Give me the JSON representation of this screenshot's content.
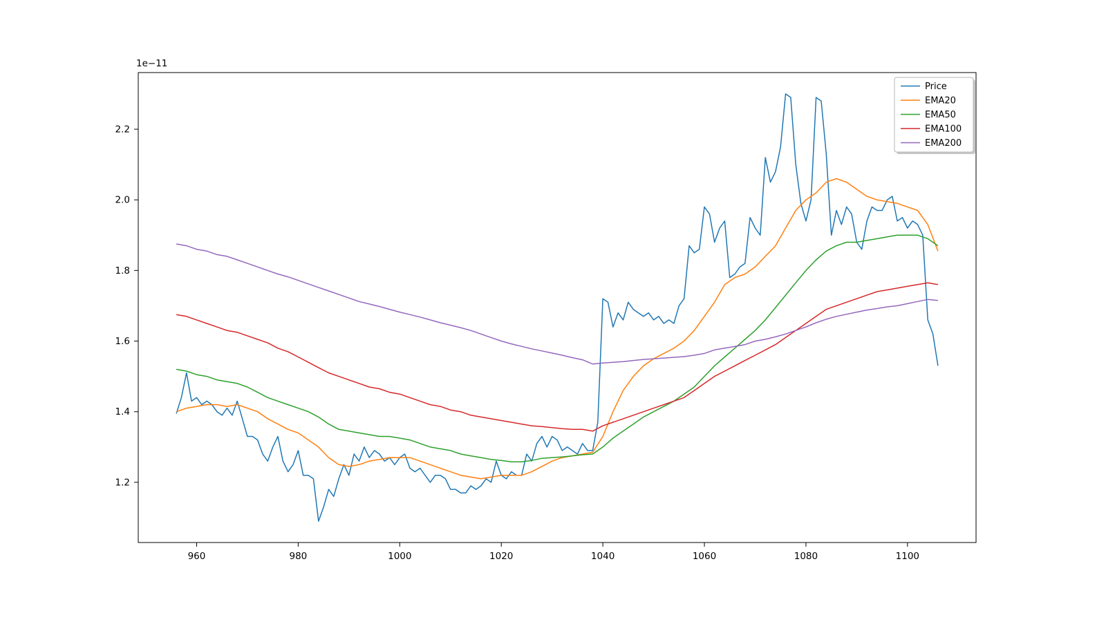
{
  "figure": {
    "background": "#ffffff",
    "axes_edge_color": "#000000",
    "legend_border_color": "#b4b4b4",
    "legend_background": "#ffffff"
  },
  "chart_data": {
    "type": "line",
    "title": "",
    "xlabel": "",
    "ylabel": "",
    "offset_text": "1e−11",
    "grid": false,
    "legend_position": "upper right",
    "xlim": [
      948.5,
      1113.5
    ],
    "ylim": [
      1.0295,
      2.3605
    ],
    "xticks": [
      960,
      980,
      1000,
      1020,
      1040,
      1060,
      1080,
      1100
    ],
    "yticks": [
      1.2,
      1.4,
      1.6,
      1.8,
      2.0,
      2.2
    ],
    "series": [
      {
        "name": "Price",
        "color": "#1f77b4",
        "x_start": 956,
        "x_step": 1,
        "values": [
          1.395,
          1.44,
          1.51,
          1.43,
          1.44,
          1.42,
          1.43,
          1.42,
          1.4,
          1.39,
          1.41,
          1.39,
          1.43,
          1.38,
          1.33,
          1.33,
          1.32,
          1.28,
          1.26,
          1.3,
          1.33,
          1.26,
          1.23,
          1.25,
          1.29,
          1.22,
          1.22,
          1.21,
          1.09,
          1.13,
          1.18,
          1.16,
          1.21,
          1.25,
          1.22,
          1.28,
          1.26,
          1.3,
          1.27,
          1.29,
          1.28,
          1.26,
          1.27,
          1.25,
          1.27,
          1.28,
          1.24,
          1.23,
          1.24,
          1.22,
          1.2,
          1.22,
          1.22,
          1.21,
          1.18,
          1.18,
          1.17,
          1.17,
          1.19,
          1.18,
          1.19,
          1.21,
          1.2,
          1.26,
          1.22,
          1.21,
          1.23,
          1.22,
          1.22,
          1.28,
          1.26,
          1.31,
          1.33,
          1.3,
          1.33,
          1.32,
          1.29,
          1.3,
          1.29,
          1.28,
          1.31,
          1.29,
          1.29,
          1.37,
          1.72,
          1.71,
          1.64,
          1.68,
          1.66,
          1.71,
          1.69,
          1.68,
          1.67,
          1.68,
          1.66,
          1.67,
          1.65,
          1.66,
          1.65,
          1.7,
          1.72,
          1.87,
          1.85,
          1.86,
          1.98,
          1.96,
          1.88,
          1.92,
          1.94,
          1.78,
          1.79,
          1.81,
          1.82,
          1.95,
          1.92,
          1.9,
          2.12,
          2.05,
          2.08,
          2.15,
          2.3,
          2.29,
          2.1,
          1.99,
          1.94,
          2.0,
          2.29,
          2.28,
          2.13,
          1.9,
          1.97,
          1.93,
          1.98,
          1.96,
          1.88,
          1.86,
          1.94,
          1.98,
          1.97,
          1.97,
          2.0,
          2.01,
          1.94,
          1.95,
          1.92,
          1.94,
          1.93,
          1.9,
          1.66,
          1.62,
          1.53
        ]
      },
      {
        "name": "EMA20",
        "color": "#ff7f0e",
        "x_start": 956,
        "x_step": 2,
        "values": [
          1.4,
          1.41,
          1.415,
          1.42,
          1.42,
          1.415,
          1.42,
          1.41,
          1.4,
          1.38,
          1.365,
          1.35,
          1.34,
          1.32,
          1.3,
          1.27,
          1.25,
          1.245,
          1.25,
          1.26,
          1.265,
          1.27,
          1.27,
          1.27,
          1.26,
          1.25,
          1.24,
          1.23,
          1.22,
          1.215,
          1.21,
          1.215,
          1.22,
          1.22,
          1.22,
          1.23,
          1.245,
          1.26,
          1.27,
          1.275,
          1.28,
          1.285,
          1.33,
          1.4,
          1.46,
          1.5,
          1.53,
          1.55,
          1.565,
          1.58,
          1.6,
          1.63,
          1.67,
          1.71,
          1.76,
          1.78,
          1.79,
          1.81,
          1.84,
          1.87,
          1.92,
          1.97,
          2.0,
          2.02,
          2.05,
          2.06,
          2.05,
          2.03,
          2.01,
          2.0,
          1.995,
          1.99,
          1.98,
          1.97,
          1.93,
          1.855
        ]
      },
      {
        "name": "EMA50",
        "color": "#2ca02c",
        "x_start": 956,
        "x_step": 2,
        "values": [
          1.52,
          1.515,
          1.505,
          1.5,
          1.49,
          1.485,
          1.48,
          1.47,
          1.455,
          1.44,
          1.43,
          1.42,
          1.41,
          1.4,
          1.385,
          1.365,
          1.35,
          1.345,
          1.34,
          1.335,
          1.33,
          1.33,
          1.325,
          1.32,
          1.31,
          1.3,
          1.295,
          1.29,
          1.28,
          1.275,
          1.27,
          1.265,
          1.262,
          1.258,
          1.258,
          1.262,
          1.268,
          1.27,
          1.272,
          1.275,
          1.278,
          1.28,
          1.3,
          1.325,
          1.345,
          1.365,
          1.385,
          1.4,
          1.415,
          1.43,
          1.45,
          1.47,
          1.5,
          1.53,
          1.555,
          1.58,
          1.605,
          1.63,
          1.66,
          1.695,
          1.73,
          1.765,
          1.8,
          1.83,
          1.855,
          1.87,
          1.88,
          1.88,
          1.885,
          1.89,
          1.895,
          1.9,
          1.9,
          1.9,
          1.89,
          1.87
        ]
      },
      {
        "name": "EMA100",
        "color": "#d62728",
        "x_start": 956,
        "x_step": 2,
        "values": [
          1.675,
          1.67,
          1.66,
          1.65,
          1.64,
          1.63,
          1.625,
          1.615,
          1.605,
          1.595,
          1.58,
          1.57,
          1.555,
          1.54,
          1.525,
          1.51,
          1.5,
          1.49,
          1.48,
          1.47,
          1.465,
          1.455,
          1.45,
          1.44,
          1.43,
          1.42,
          1.415,
          1.405,
          1.4,
          1.39,
          1.385,
          1.38,
          1.375,
          1.37,
          1.365,
          1.36,
          1.358,
          1.355,
          1.352,
          1.35,
          1.35,
          1.345,
          1.36,
          1.37,
          1.38,
          1.39,
          1.4,
          1.41,
          1.42,
          1.43,
          1.44,
          1.46,
          1.48,
          1.5,
          1.515,
          1.53,
          1.545,
          1.56,
          1.575,
          1.59,
          1.61,
          1.63,
          1.65,
          1.67,
          1.69,
          1.7,
          1.71,
          1.72,
          1.73,
          1.74,
          1.745,
          1.75,
          1.755,
          1.76,
          1.765,
          1.76
        ]
      },
      {
        "name": "EMA200",
        "color": "#9467bd",
        "x_start": 956,
        "x_step": 2,
        "values": [
          1.875,
          1.87,
          1.86,
          1.855,
          1.845,
          1.84,
          1.83,
          1.82,
          1.81,
          1.8,
          1.79,
          1.782,
          1.772,
          1.762,
          1.752,
          1.742,
          1.732,
          1.722,
          1.712,
          1.705,
          1.698,
          1.69,
          1.682,
          1.675,
          1.668,
          1.66,
          1.652,
          1.645,
          1.638,
          1.63,
          1.62,
          1.61,
          1.6,
          1.592,
          1.585,
          1.578,
          1.572,
          1.566,
          1.56,
          1.553,
          1.547,
          1.535,
          1.538,
          1.54,
          1.542,
          1.545,
          1.548,
          1.55,
          1.552,
          1.554,
          1.556,
          1.56,
          1.565,
          1.575,
          1.58,
          1.585,
          1.59,
          1.6,
          1.605,
          1.612,
          1.62,
          1.63,
          1.64,
          1.652,
          1.662,
          1.67,
          1.676,
          1.682,
          1.688,
          1.692,
          1.697,
          1.7,
          1.706,
          1.712,
          1.718,
          1.715
        ]
      }
    ]
  }
}
